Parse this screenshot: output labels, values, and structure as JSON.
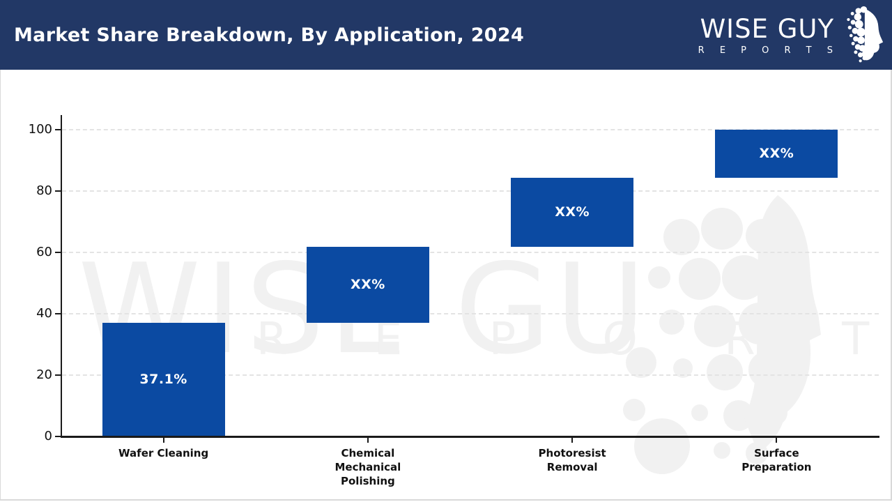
{
  "header": {
    "title": "Market Share Breakdown, By Application, 2024",
    "logo": {
      "brand": "WISE GUY",
      "sub": "R E P O R T S"
    }
  },
  "watermark": {
    "brand": "WISE GU",
    "sub": "R E P O R T S"
  },
  "colors": {
    "header_bg": "#223866",
    "bar_fill": "#0b4aa2",
    "bar_label": "#ffffff",
    "gridline": "#e3e3e3",
    "axis": "#1a1a1a",
    "watermark": "#f1f1f1"
  },
  "chart_data": {
    "type": "bar",
    "subtype": "floating-waterfall",
    "title": "Market Share Breakdown, By Application, 2024",
    "categories": [
      "Wafer Cleaning",
      "Chemical Mechanical Polishing",
      "Photoresist Removal",
      "Surface Preparation"
    ],
    "category_lines": [
      [
        "Wafer Cleaning"
      ],
      [
        "Chemical",
        "Mechanical",
        "Polishing"
      ],
      [
        "Photoresist",
        "Removal"
      ],
      [
        "Surface",
        "Preparation"
      ]
    ],
    "bars": [
      {
        "category": "Wafer Cleaning",
        "start": 0,
        "end": 37.1,
        "label": "37.1%"
      },
      {
        "category": "Chemical Mechanical Polishing",
        "start": 37.1,
        "end": 61.9,
        "label": "XX%"
      },
      {
        "category": "Photoresist Removal",
        "start": 61.9,
        "end": 84.4,
        "label": "XX%"
      },
      {
        "category": "Surface Preparation",
        "start": 84.4,
        "end": 100,
        "label": "XX%"
      }
    ],
    "ylim": [
      0,
      100
    ],
    "yticks": [
      0,
      20,
      40,
      60,
      80,
      100
    ],
    "xlabel": "",
    "ylabel": "",
    "grid": "horizontal-dashed",
    "legend": "none"
  }
}
